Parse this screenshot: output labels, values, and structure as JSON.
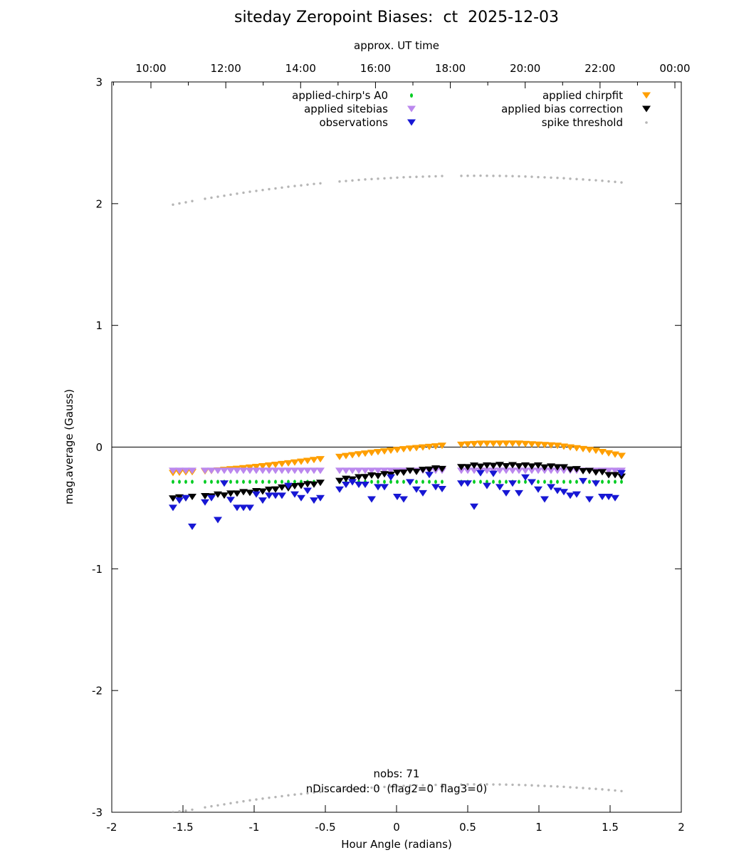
{
  "title": "siteday Zeropoint Biases:  ct  2025-12-03",
  "top_axis": {
    "label": "approx. UT time",
    "major_labels": [
      "10:00",
      "12:00",
      "14:00",
      "16:00",
      "18:00",
      "20:00",
      "22:00",
      "00:00"
    ],
    "major_hours": [
      10,
      12,
      14,
      16,
      18,
      20,
      22,
      24
    ],
    "minor_hours": [
      9,
      11,
      13,
      15,
      17,
      19,
      21,
      23
    ]
  },
  "x_axis": {
    "label": "Hour Angle (radians)",
    "tick_values": [
      -2,
      -1.5,
      -1,
      -0.5,
      0,
      0.5,
      1,
      1.5,
      2
    ],
    "tick_labels": [
      "-2",
      "-1.5",
      "-1",
      "-0.5",
      "0",
      "0.5",
      "1",
      "1.5",
      "2"
    ],
    "range": [
      -2,
      2
    ]
  },
  "y_axis": {
    "label": "mag.average (Gauss)",
    "tick_values": [
      3,
      2,
      1,
      0,
      -1,
      -2,
      -3
    ],
    "tick_labels": [
      "3",
      "2",
      "1",
      "0",
      "-1",
      "-2",
      "-3"
    ],
    "range": [
      -3,
      3
    ]
  },
  "annotations": {
    "nobs": "nobs: 71",
    "ndiscarded": "nDiscarded: 0  (flag2=0  flag3=0)"
  },
  "legend": {
    "left": [
      {
        "label": "applied-chirp's A0",
        "marker": "dot",
        "color": "#00cc22"
      },
      {
        "label": "applied sitebias",
        "marker": "triangle-down",
        "color": "#bb88ee"
      },
      {
        "label": "observations",
        "marker": "triangle-down",
        "color": "#1717d4"
      }
    ],
    "right": [
      {
        "label": "applied chirpfit",
        "marker": "triangle-down",
        "color": "#ff9f00"
      },
      {
        "label": "applied bias correction",
        "marker": "triangle-down",
        "color": "#000000"
      },
      {
        "label": "spike threshold",
        "marker": "dot-small",
        "color": "#b5b5b5"
      }
    ]
  },
  "chart_data": {
    "type": "scatter",
    "title": "siteday Zeropoint Biases:  ct  2025-12-03",
    "xlabel": "Hour Angle (radians)",
    "ylabel": "mag.average (Gauss)",
    "x2label": "approx. UT time",
    "xlim": [
      -2,
      2
    ],
    "ylim": [
      -3,
      3
    ],
    "grid": false,
    "zero_axis": true,
    "legend_position": "top-inside",
    "x": [
      -1.57,
      -1.525,
      -1.48,
      -1.435,
      -1.39,
      -1.345,
      -1.3,
      -1.255,
      -1.21,
      -1.165,
      -1.12,
      -1.075,
      -1.03,
      -0.985,
      -0.94,
      -0.895,
      -0.85,
      -0.805,
      -0.76,
      -0.715,
      -0.67,
      -0.625,
      -0.58,
      -0.535,
      -0.49,
      -0.445,
      -0.4,
      -0.355,
      -0.31,
      -0.265,
      -0.22,
      -0.175,
      -0.13,
      -0.085,
      -0.04,
      0.005,
      0.05,
      0.095,
      0.14,
      0.185,
      0.23,
      0.275,
      0.32,
      0.365,
      0.41,
      0.455,
      0.5,
      0.545,
      0.59,
      0.635,
      0.68,
      0.725,
      0.77,
      0.815,
      0.86,
      0.905,
      0.95,
      0.995,
      1.04,
      1.085,
      1.13,
      1.175,
      1.22,
      1.265,
      1.31,
      1.355,
      1.4,
      1.445,
      1.49,
      1.535,
      1.58
    ],
    "series": [
      {
        "id": "a0",
        "name": "applied-chirp's A0",
        "marker": "dot",
        "color": "#00cc22",
        "values": [
          -0.285,
          -0.285,
          -0.285,
          -0.285,
          null,
          -0.285,
          -0.285,
          -0.285,
          -0.285,
          -0.285,
          -0.285,
          -0.285,
          -0.285,
          -0.285,
          -0.285,
          -0.285,
          -0.285,
          -0.285,
          -0.285,
          -0.285,
          -0.285,
          -0.285,
          -0.285,
          -0.285,
          null,
          null,
          -0.285,
          -0.285,
          -0.285,
          -0.285,
          -0.285,
          -0.285,
          -0.285,
          -0.285,
          -0.285,
          -0.285,
          -0.285,
          -0.285,
          -0.285,
          -0.285,
          -0.285,
          -0.285,
          -0.285,
          null,
          null,
          -0.285,
          -0.285,
          -0.285,
          -0.285,
          -0.285,
          -0.285,
          -0.285,
          -0.285,
          -0.285,
          -0.285,
          -0.285,
          -0.285,
          -0.285,
          -0.285,
          -0.285,
          -0.285,
          -0.285,
          -0.285,
          -0.285,
          -0.285,
          -0.285,
          -0.285,
          -0.285,
          -0.285,
          -0.285,
          -0.285
        ]
      },
      {
        "id": "chirpfit",
        "name": "applied chirpfit",
        "marker": "triangle-down",
        "color": "#ff9f00",
        "values": [
          -0.214,
          -0.211,
          -0.208,
          -0.206,
          null,
          -0.2,
          -0.197,
          -0.193,
          -0.188,
          -0.183,
          -0.179,
          -0.174,
          -0.169,
          -0.164,
          -0.158,
          -0.152,
          -0.146,
          -0.14,
          -0.134,
          -0.127,
          -0.121,
          -0.114,
          -0.107,
          -0.1,
          null,
          null,
          -0.081,
          -0.074,
          -0.067,
          -0.06,
          -0.054,
          -0.048,
          -0.042,
          -0.036,
          -0.03,
          -0.024,
          -0.018,
          -0.013,
          -0.009,
          -0.004,
          0.001,
          0.005,
          0.01,
          null,
          null,
          0.018,
          0.021,
          0.024,
          0.027,
          0.027,
          0.027,
          0.028,
          0.028,
          0.028,
          0.028,
          0.025,
          0.022,
          0.019,
          0.016,
          0.013,
          0.01,
          0.003,
          -0.004,
          -0.01,
          -0.017,
          -0.024,
          -0.031,
          -0.041,
          -0.052,
          -0.062,
          -0.073
        ]
      },
      {
        "id": "sitebias",
        "name": "applied sitebias",
        "marker": "triangle-down",
        "color": "#bb88ee",
        "values": [
          -0.195,
          -0.195,
          -0.195,
          -0.195,
          null,
          -0.195,
          -0.195,
          -0.195,
          -0.195,
          -0.195,
          -0.195,
          -0.195,
          -0.195,
          -0.195,
          -0.195,
          -0.195,
          -0.195,
          -0.195,
          -0.195,
          -0.195,
          -0.195,
          -0.195,
          -0.195,
          -0.195,
          null,
          null,
          -0.195,
          -0.195,
          -0.195,
          -0.195,
          -0.195,
          -0.195,
          -0.195,
          -0.195,
          -0.195,
          -0.195,
          -0.195,
          -0.195,
          -0.195,
          -0.195,
          -0.195,
          -0.195,
          -0.195,
          null,
          null,
          -0.195,
          -0.195,
          -0.195,
          -0.195,
          -0.195,
          -0.195,
          -0.195,
          -0.195,
          -0.195,
          -0.195,
          -0.195,
          -0.195,
          -0.195,
          -0.195,
          -0.195,
          -0.195,
          -0.195,
          -0.195,
          -0.195,
          -0.195,
          -0.195,
          -0.195,
          -0.195,
          -0.195,
          -0.195,
          -0.195
        ]
      },
      {
        "id": "bias_correction",
        "name": "applied bias correction",
        "marker": "triangle-down",
        "color": "#000000",
        "values": [
          -0.423,
          -0.414,
          -0.421,
          -0.41,
          null,
          -0.404,
          -0.406,
          -0.391,
          -0.399,
          -0.383,
          -0.383,
          -0.371,
          -0.377,
          -0.363,
          -0.366,
          -0.351,
          -0.349,
          -0.333,
          -0.339,
          -0.322,
          -0.319,
          -0.306,
          -0.309,
          -0.294,
          null,
          null,
          -0.279,
          -0.261,
          -0.267,
          -0.249,
          -0.247,
          -0.234,
          -0.239,
          -0.224,
          -0.228,
          -0.212,
          -0.211,
          -0.195,
          -0.204,
          -0.188,
          -0.186,
          -0.176,
          -0.181,
          null,
          null,
          -0.165,
          -0.166,
          -0.153,
          -0.162,
          -0.152,
          -0.155,
          -0.148,
          -0.158,
          -0.149,
          -0.159,
          -0.152,
          -0.16,
          -0.152,
          -0.168,
          -0.16,
          -0.167,
          -0.167,
          -0.185,
          -0.182,
          -0.198,
          -0.197,
          -0.209,
          -0.207,
          -0.231,
          -0.231,
          -0.244
        ]
      },
      {
        "id": "observations",
        "name": "observations",
        "marker": "triangle-down",
        "color": "#1717d4",
        "values": [
          -0.5,
          -0.44,
          -0.42,
          -0.655,
          null,
          -0.455,
          -0.42,
          -0.6,
          -0.3,
          -0.435,
          -0.5,
          -0.5,
          -0.5,
          -0.39,
          -0.44,
          -0.4,
          -0.4,
          -0.4,
          -0.32,
          -0.39,
          -0.42,
          -0.36,
          -0.44,
          -0.42,
          null,
          null,
          -0.35,
          -0.31,
          -0.29,
          -0.31,
          -0.31,
          -0.43,
          -0.33,
          -0.33,
          -0.25,
          -0.41,
          -0.43,
          -0.29,
          -0.35,
          -0.38,
          -0.23,
          -0.33,
          -0.345,
          null,
          null,
          -0.3,
          -0.3,
          -0.49,
          -0.215,
          -0.32,
          -0.22,
          -0.33,
          -0.38,
          -0.3,
          -0.38,
          -0.25,
          -0.29,
          -0.35,
          -0.43,
          -0.33,
          -0.36,
          -0.37,
          -0.4,
          -0.39,
          -0.28,
          -0.43,
          -0.3,
          -0.41,
          -0.41,
          -0.42,
          -0.215
        ]
      },
      {
        "id": "spike_threshold_upper",
        "name": "spike threshold",
        "marker": "dot-small",
        "color": "#b5b5b5",
        "values": [
          1.992,
          2.002,
          2.011,
          2.021,
          null,
          2.04,
          2.049,
          2.057,
          2.065,
          2.074,
          2.082,
          2.09,
          2.098,
          2.105,
          2.112,
          2.119,
          2.125,
          2.132,
          2.139,
          2.145,
          2.15,
          2.156,
          2.162,
          2.167,
          null,
          null,
          2.182,
          2.186,
          2.19,
          2.195,
          2.199,
          2.202,
          2.205,
          2.208,
          2.211,
          2.214,
          2.217,
          2.219,
          2.22,
          2.222,
          2.224,
          2.225,
          2.227,
          null,
          null,
          2.228,
          2.229,
          2.229,
          2.23,
          2.229,
          2.228,
          2.228,
          2.227,
          2.226,
          2.225,
          2.223,
          2.221,
          2.218,
          2.216,
          2.214,
          2.212,
          2.209,
          2.205,
          2.202,
          2.199,
          2.195,
          2.192,
          2.188,
          2.183,
          2.179,
          2.174
        ]
      },
      {
        "id": "spike_threshold_lower",
        "name": "spike threshold",
        "marker": "dot-small",
        "color": "#b5b5b5",
        "values": [
          -2.998,
          -2.993,
          -2.987,
          -2.979,
          null,
          -2.96,
          -2.951,
          -2.943,
          -2.935,
          -2.926,
          -2.918,
          -2.91,
          -2.902,
          -2.895,
          -2.888,
          -2.881,
          -2.875,
          -2.868,
          -2.861,
          -2.855,
          -2.85,
          -2.844,
          -2.838,
          -2.833,
          null,
          null,
          -2.818,
          -2.814,
          -2.81,
          -2.805,
          -2.801,
          -2.798,
          -2.795,
          -2.792,
          -2.789,
          -2.786,
          -2.783,
          -2.781,
          -2.78,
          -2.778,
          -2.776,
          -2.775,
          -2.773,
          null,
          null,
          -2.772,
          -2.771,
          -2.771,
          -2.77,
          -2.771,
          -2.772,
          -2.772,
          -2.773,
          -2.774,
          -2.775,
          -2.777,
          -2.779,
          -2.782,
          -2.784,
          -2.786,
          -2.788,
          -2.791,
          -2.795,
          -2.798,
          -2.801,
          -2.805,
          -2.808,
          -2.812,
          -2.817,
          -2.821,
          -2.826
        ]
      }
    ]
  }
}
